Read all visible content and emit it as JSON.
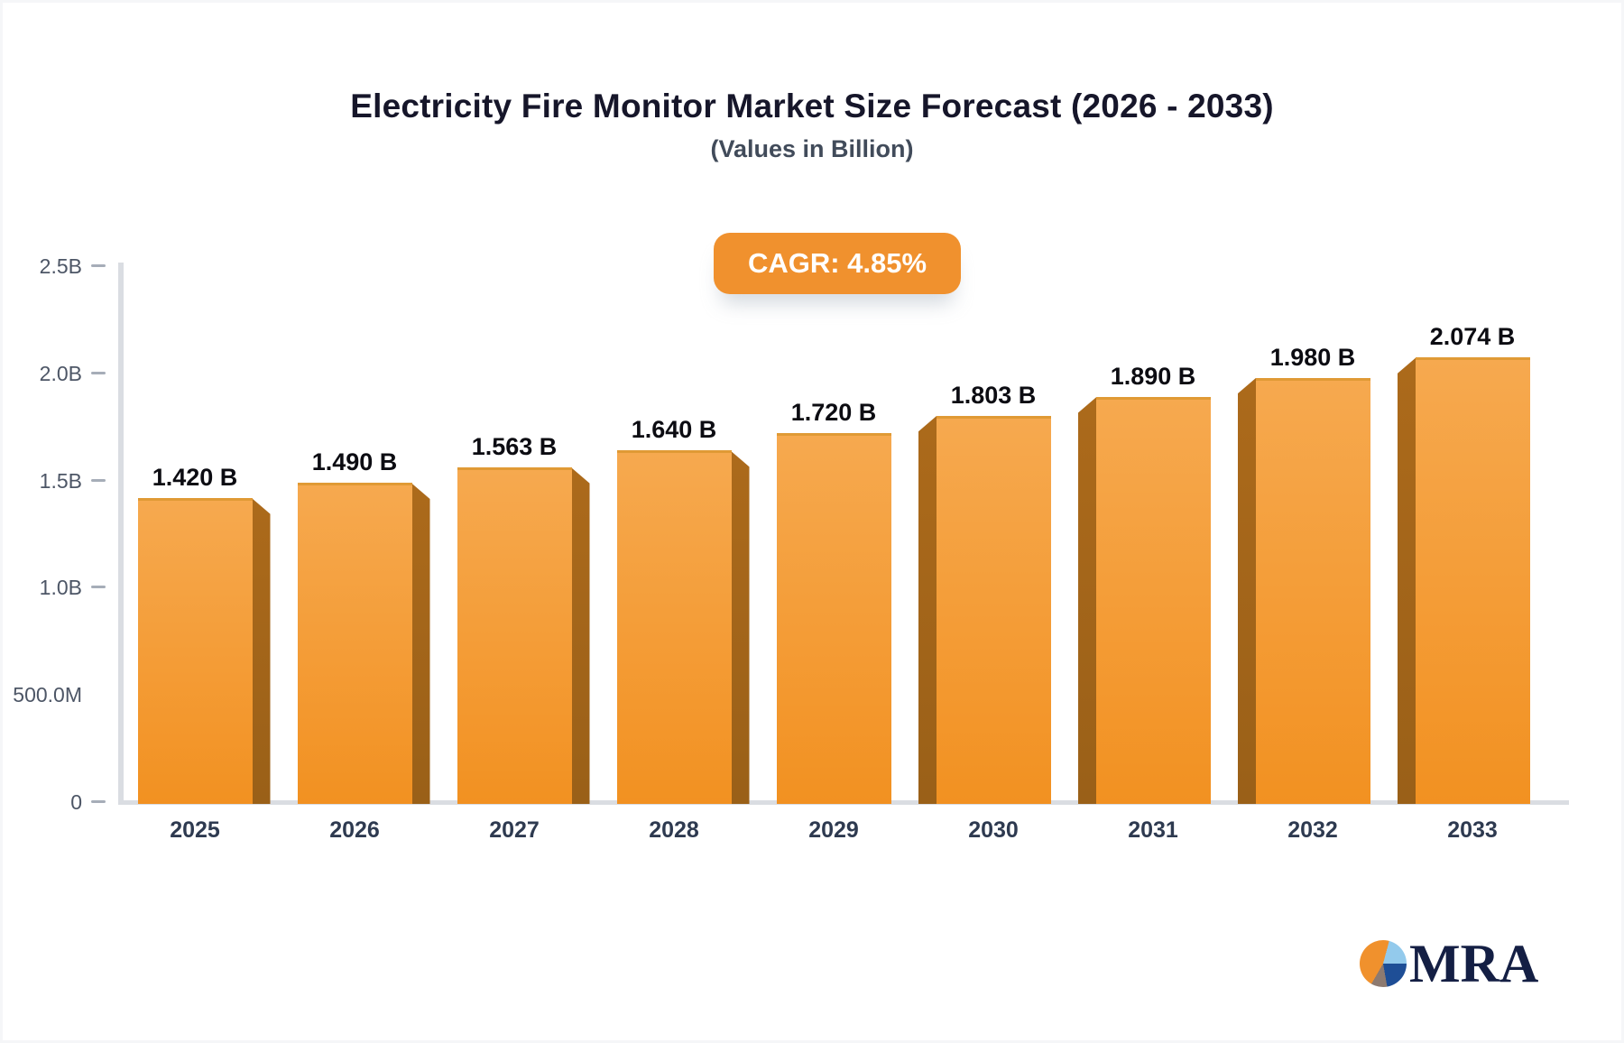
{
  "chart_data": {
    "type": "bar",
    "title": "Electricity Fire Monitor Market Size Forecast (2026 - 2033)",
    "subtitle": "(Values in Billion)",
    "cagr_label": "CAGR: 4.85%",
    "categories": [
      "2025",
      "2026",
      "2027",
      "2028",
      "2029",
      "2030",
      "2031",
      "2032",
      "2033"
    ],
    "values": [
      1.42,
      1.49,
      1.563,
      1.64,
      1.72,
      1.803,
      1.89,
      1.98,
      2.074
    ],
    "value_labels": [
      "1.420 B",
      "1.490 B",
      "1.563 B",
      "1.640 B",
      "1.720 B",
      "1.803 B",
      "1.890 B",
      "1.980 B",
      "2.074 B"
    ],
    "xlabel": "",
    "ylabel": "",
    "ylim": [
      0,
      2.5
    ],
    "y_ticks": [
      {
        "label": "2.5B",
        "value": 2.5,
        "tick": true
      },
      {
        "label": "2.0B",
        "value": 2.0,
        "tick": true
      },
      {
        "label": "1.5B",
        "value": 1.5,
        "tick": true
      },
      {
        "label": "1.0B",
        "value": 1.0,
        "tick": true
      },
      {
        "label": "500.0M",
        "value": 0.5,
        "tick": false
      },
      {
        "label": "0",
        "value": 0,
        "tick": true
      }
    ],
    "grid": false,
    "legend": false,
    "bar_style": "3d-perspective",
    "colors": {
      "bar_top": "#F6A94F",
      "bar_bottom": "#F29121",
      "bar_edge": "#E09A35",
      "bar_side": "#AC6A1B",
      "bar_side_dark": "#9A6018",
      "badge_bg": "#F0912E",
      "badge_text": "#FFFFFF",
      "axis_line": "#DADDE2",
      "tick_mark": "#A6ADB8",
      "y_label": "#4D5666",
      "x_label": "#2E3A50",
      "value_label": "#0C0C12",
      "title": "#16162A",
      "subtitle": "#414B5A"
    }
  },
  "logo": {
    "text": "MRA",
    "colors": {
      "text": "#141F44",
      "pie_orange": "#F0912D",
      "pie_lightblue": "#93CAEC",
      "pie_darkblue": "#1E4E96",
      "pie_taupe": "#8D7A70"
    }
  }
}
